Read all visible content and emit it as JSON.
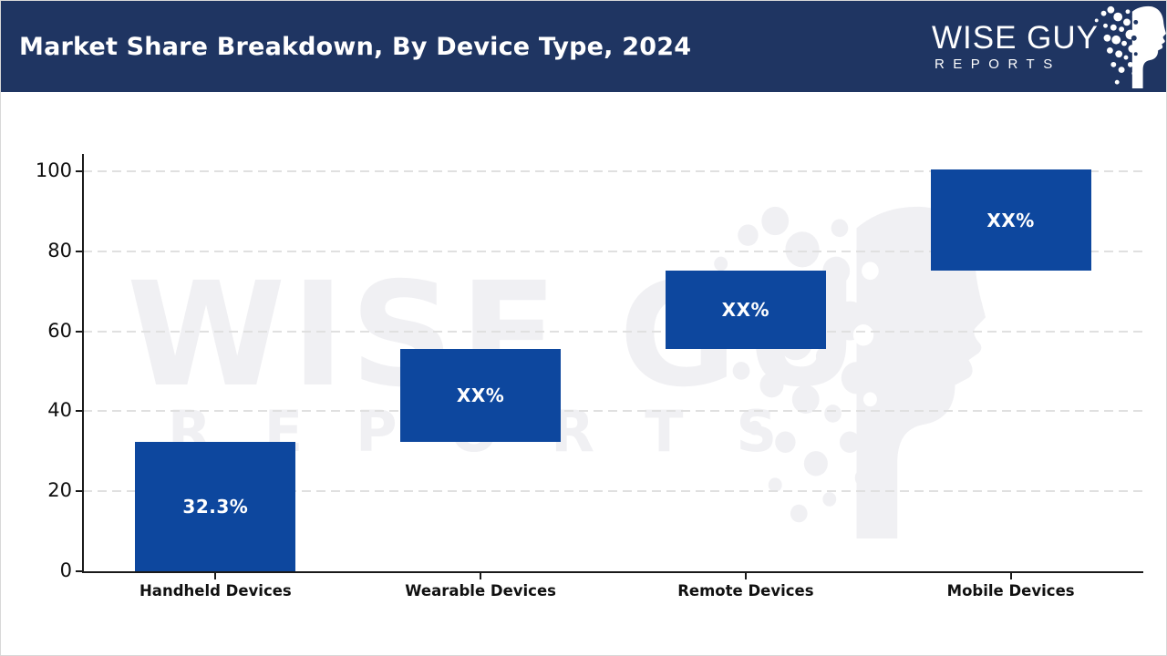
{
  "header": {
    "title": "Market Share Breakdown, By Device Type, 2024",
    "background_color": "#1f3562",
    "logo": {
      "line1": "WISE GUY",
      "line2": "REPORTS"
    }
  },
  "watermark": {
    "line1": "WISE GUY",
    "line2": "REPORTS"
  },
  "chart_data": {
    "type": "bar",
    "subtype": "waterfall",
    "title": "Market Share Breakdown, By Device Type, 2024",
    "categories": [
      "Handheld Devices",
      "Wearable Devices",
      "Remote Devices",
      "Mobile Devices"
    ],
    "segments": [
      {
        "category": "Handheld Devices",
        "start": 0,
        "end": 32.3,
        "label": "32.3%"
      },
      {
        "category": "Wearable Devices",
        "start": 32.3,
        "end": 55.6,
        "label": "XX%"
      },
      {
        "category": "Remote Devices",
        "start": 55.6,
        "end": 75.2,
        "label": "XX%"
      },
      {
        "category": "Mobile Devices",
        "start": 75.2,
        "end": 100.4,
        "label": "XX%"
      }
    ],
    "yticks": [
      0,
      20,
      40,
      60,
      80,
      100
    ],
    "ylim": [
      0,
      104
    ],
    "xlabel": "",
    "ylabel": "",
    "grid": "horizontal-dashed",
    "legend": "none",
    "bar_color": "#0d479e",
    "bar_label_color": "#ffffff"
  }
}
